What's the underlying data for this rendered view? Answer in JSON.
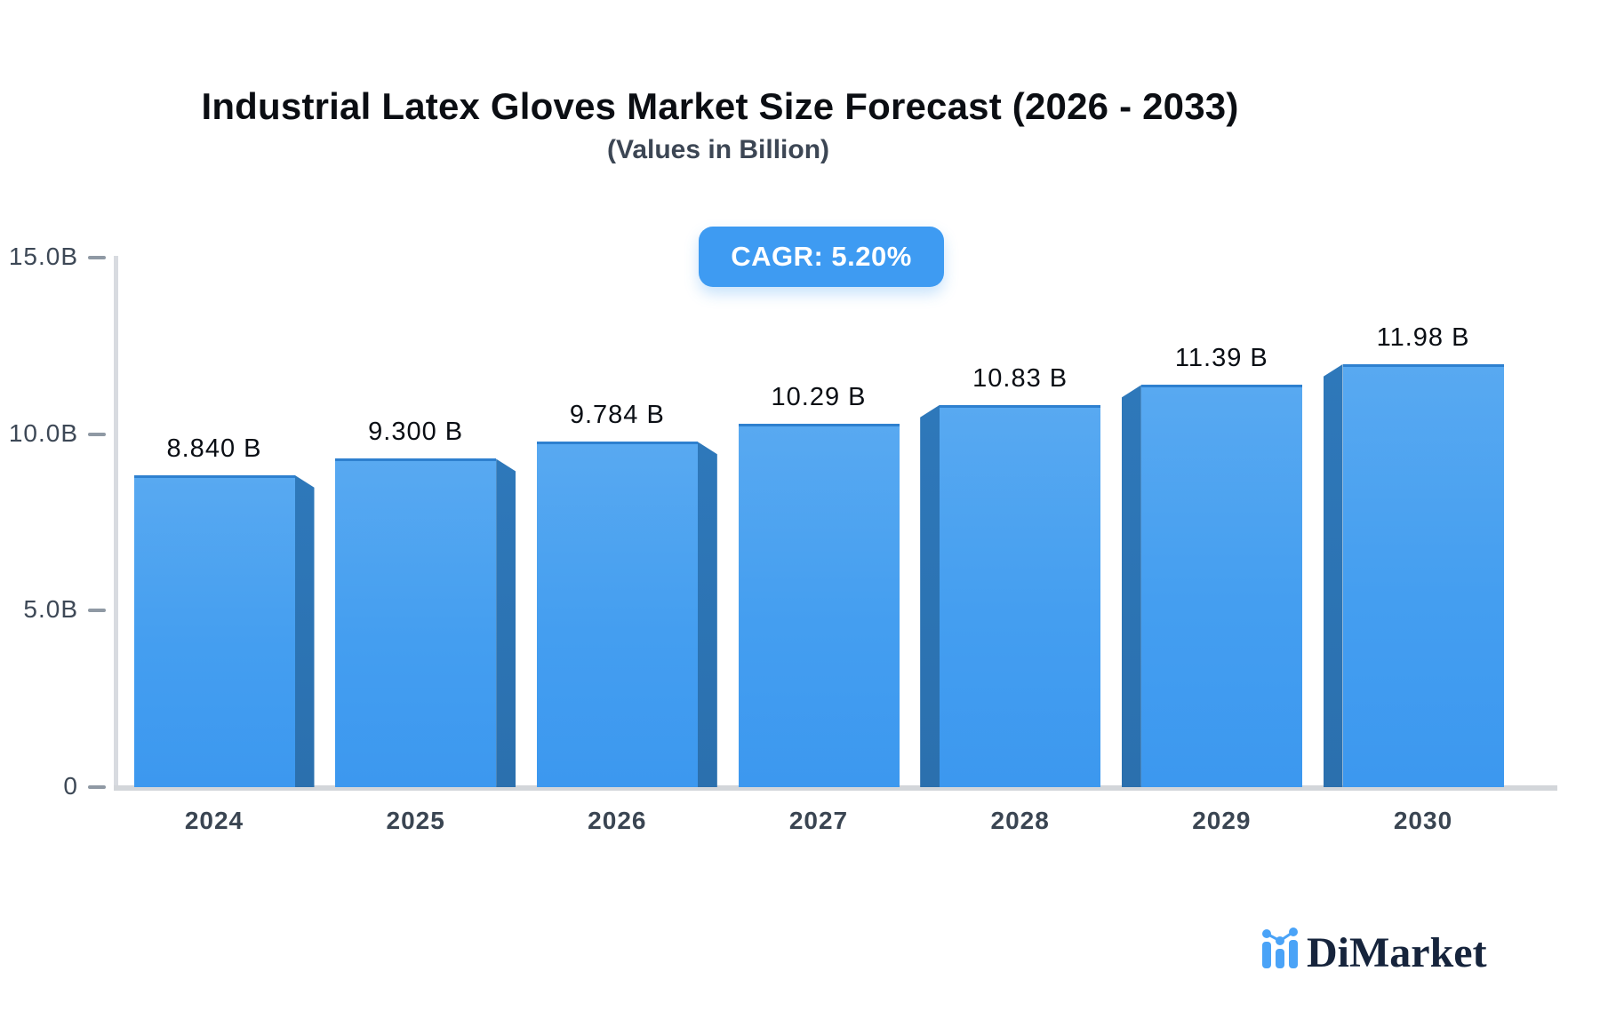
{
  "header": {
    "title": "Industrial Latex Gloves Market Size Forecast (2026 - 2033)",
    "subtitle": "(Values in Billion)",
    "cagr_badge": "CAGR: 5.20%"
  },
  "brand": {
    "name": "DiMarket"
  },
  "colors": {
    "bar_face_top": "#58a9f1",
    "bar_face_bottom": "#3c98ef",
    "bar_top_edge": "#2e80cf",
    "bar_side": "#2e78ba",
    "bar_side_dark": "#2b70ae",
    "badge_bg": "#3e9bf2",
    "axis_line": "#d8dbe0",
    "baseline": "#d3d6da",
    "tick": "#8f99a4",
    "title_text": "#0b0e13",
    "slate_text": "#3d4856",
    "brand_blue": "#4aa3f7",
    "brand_navy": "#16243c"
  },
  "chart_data": {
    "type": "bar",
    "title": "Industrial Latex Gloves Market Size Forecast (2026 - 2033)",
    "subtitle": "(Values in Billion)",
    "cagr": "5.20%",
    "unit": "Billion",
    "categories": [
      "2024",
      "2025",
      "2026",
      "2027",
      "2028",
      "2029",
      "2030"
    ],
    "values": [
      8.84,
      9.3,
      9.784,
      10.29,
      10.83,
      11.39,
      11.98
    ],
    "value_labels": [
      "8.840 B",
      "9.300 B",
      "9.784 B",
      "10.29 B",
      "10.83 B",
      "11.39 B",
      "11.98 B"
    ],
    "ylim": [
      0,
      15
    ],
    "y_ticks": [
      {
        "value": 0,
        "label": "0"
      },
      {
        "value": 5,
        "label": "5.0B"
      },
      {
        "value": 10,
        "label": "10.0B"
      },
      {
        "value": 15,
        "label": "15.0B"
      }
    ],
    "grid": false,
    "legend": false,
    "bar_style": "3d-extruded-central-perspective"
  }
}
